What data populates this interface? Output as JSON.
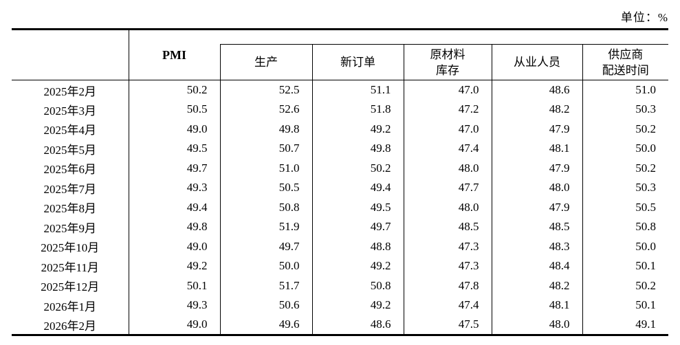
{
  "unit_label": "单位：%",
  "table": {
    "header": {
      "month_column_label": "",
      "pmi_label": "PMI",
      "sub_columns": [
        {
          "id": "production",
          "lines": [
            "生产"
          ]
        },
        {
          "id": "new-orders",
          "lines": [
            "新订单"
          ]
        },
        {
          "id": "raw-material-inventory",
          "lines": [
            "原材料",
            "库存"
          ]
        },
        {
          "id": "employment",
          "lines": [
            "从业人员"
          ]
        },
        {
          "id": "supplier-delivery-time",
          "lines": [
            "供应商",
            "配送时间"
          ]
        }
      ]
    },
    "rows": [
      {
        "month": "2025年2月",
        "values": [
          "50.2",
          "52.5",
          "51.1",
          "47.0",
          "48.6",
          "51.0"
        ]
      },
      {
        "month": "2025年3月",
        "values": [
          "50.5",
          "52.6",
          "51.8",
          "47.2",
          "48.2",
          "50.3"
        ]
      },
      {
        "month": "2025年4月",
        "values": [
          "49.0",
          "49.8",
          "49.2",
          "47.0",
          "47.9",
          "50.2"
        ]
      },
      {
        "month": "2025年5月",
        "values": [
          "49.5",
          "50.7",
          "49.8",
          "47.4",
          "48.1",
          "50.0"
        ]
      },
      {
        "month": "2025年6月",
        "values": [
          "49.7",
          "51.0",
          "50.2",
          "48.0",
          "47.9",
          "50.2"
        ]
      },
      {
        "month": "2025年7月",
        "values": [
          "49.3",
          "50.5",
          "49.4",
          "47.7",
          "48.0",
          "50.3"
        ]
      },
      {
        "month": "2025年8月",
        "values": [
          "49.4",
          "50.8",
          "49.5",
          "48.0",
          "47.9",
          "50.5"
        ]
      },
      {
        "month": "2025年9月",
        "values": [
          "49.8",
          "51.9",
          "49.7",
          "48.5",
          "48.5",
          "50.8"
        ]
      },
      {
        "month": "2025年10月",
        "values": [
          "49.0",
          "49.7",
          "48.8",
          "47.3",
          "48.3",
          "50.0"
        ]
      },
      {
        "month": "2025年11月",
        "values": [
          "49.2",
          "50.0",
          "49.2",
          "47.3",
          "48.4",
          "50.1"
        ]
      },
      {
        "month": "2025年12月",
        "values": [
          "50.1",
          "51.7",
          "50.8",
          "47.8",
          "48.2",
          "50.2"
        ]
      },
      {
        "month": "2026年1月",
        "values": [
          "49.3",
          "50.6",
          "49.2",
          "47.4",
          "48.1",
          "50.1"
        ]
      },
      {
        "month": "2026年2月",
        "values": [
          "49.0",
          "49.6",
          "48.6",
          "47.5",
          "48.0",
          "49.1"
        ]
      }
    ]
  }
}
